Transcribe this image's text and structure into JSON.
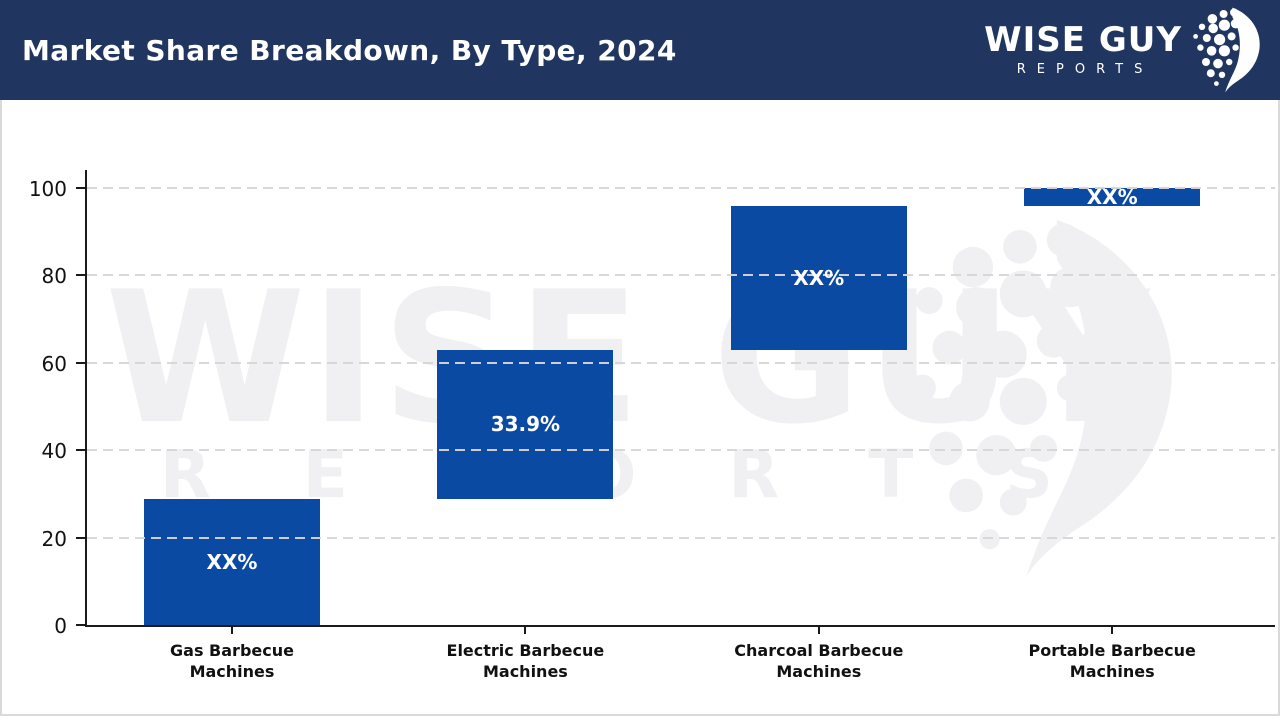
{
  "header": {
    "title": "Market Share Breakdown, By Type, 2024",
    "logo": {
      "name": "WISE GUY",
      "sub": "REPORTS"
    }
  },
  "watermark": {
    "line1": "WISE GUY",
    "line2": "REPORTS"
  },
  "chart_data": {
    "type": "bar",
    "subtype": "floating-segment-waterfall",
    "title": "Market Share Breakdown, By Type, 2024",
    "xlabel": "",
    "ylabel": "",
    "categories": [
      "Gas Barbecue Machines",
      "Electric Barbecue Machines",
      "Charcoal Barbecue Machines",
      "Portable Barbecue Machines"
    ],
    "category_label_lines": [
      [
        "Gas Barbecue",
        "Machines"
      ],
      [
        "Electric Barbecue",
        "Machines"
      ],
      [
        "Charcoal Barbecue",
        "Machines"
      ],
      [
        "Portable Barbecue",
        "Machines"
      ]
    ],
    "series": [
      {
        "name": "Market share (%)",
        "segments": [
          {
            "category": "Gas Barbecue Machines",
            "label": "XX%",
            "start": 0,
            "end": 28.9
          },
          {
            "category": "Electric Barbecue Machines",
            "label": "33.9%",
            "start": 28.9,
            "end": 62.8
          },
          {
            "category": "Charcoal Barbecue Machines",
            "label": "XX%",
            "start": 62.8,
            "end": 95.7
          },
          {
            "category": "Portable Barbecue Machines",
            "label": "XX%",
            "start": 95.7,
            "end": 100
          }
        ]
      }
    ],
    "yticks": [
      0,
      20,
      40,
      60,
      80,
      100
    ],
    "ylim": [
      0,
      104
    ],
    "grid": "horizontal-dashed",
    "legend": "none",
    "bar_color": "#0b4aa2",
    "bar_label_color": "#ffffff"
  },
  "colors": {
    "header_bg": "#203661",
    "bar": "#0b4aa2",
    "bar_label": "#ffffff",
    "axis": "#1a1a1a",
    "grid": "#d9d9d9",
    "watermark": "#f0f0f3",
    "frame": "#dadada"
  }
}
